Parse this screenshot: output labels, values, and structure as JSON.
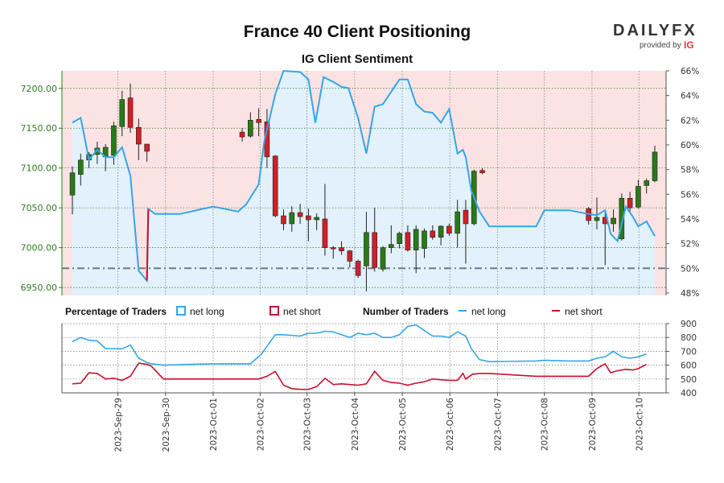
{
  "chart_data": {
    "type": "candlestick",
    "title": "France 40 Client Positioning",
    "subtitle": "IG Client Sentiment",
    "price_axis": {
      "ticks": [
        "7200.00",
        "7150.00",
        "7100.00",
        "7050.00",
        "7000.00",
        "6950.00"
      ],
      "range": [
        6940,
        7222
      ]
    },
    "sentiment_axis": {
      "ticks": [
        "66%",
        "64%",
        "62%",
        "60%",
        "58%",
        "56%",
        "54%",
        "52%",
        "50%",
        "48%"
      ],
      "range": [
        47.8,
        66
      ]
    },
    "traders_axis": {
      "ticks": [
        "900",
        "800",
        "700",
        "600",
        "500",
        "400"
      ],
      "range": [
        400,
        900
      ]
    },
    "x_labels": [
      "2023-Sep-29",
      "2023-Sep-30",
      "2023-Oct-01",
      "2023-Oct-02",
      "2023-Oct-03",
      "2023-Oct-04",
      "2023-Oct-05",
      "2023-Oct-06",
      "2023-Oct-07",
      "2023-Oct-08",
      "2023-Oct-09",
      "2023-Oct-10"
    ],
    "x_label_index": [
      3.3,
      6.75,
      10.2,
      13.6,
      17.0,
      20.45,
      23.9,
      27.35,
      30.8,
      34.2,
      37.65,
      41.05
    ],
    "baseline_pct": 50,
    "candles": [
      {
        "i": 0.0,
        "o": 7066,
        "h": 7102,
        "l": 7042,
        "c": 7094
      },
      {
        "i": 0.6,
        "o": 7092,
        "h": 7118,
        "l": 7078,
        "c": 7110
      },
      {
        "i": 1.2,
        "o": 7110,
        "h": 7120,
        "l": 7100,
        "c": 7117
      },
      {
        "i": 1.8,
        "o": 7117,
        "h": 7133,
        "l": 7105,
        "c": 7125
      },
      {
        "i": 2.4,
        "o": 7114,
        "h": 7130,
        "l": 7096,
        "c": 7126
      },
      {
        "i": 3.0,
        "o": 7116,
        "h": 7158,
        "l": 7104,
        "c": 7153
      },
      {
        "i": 3.6,
        "o": 7152,
        "h": 7197,
        "l": 7140,
        "c": 7186
      },
      {
        "i": 4.2,
        "o": 7188,
        "h": 7206,
        "l": 7144,
        "c": 7151
      },
      {
        "i": 4.8,
        "o": 7151,
        "h": 7162,
        "l": 7110,
        "c": 7130
      },
      {
        "i": 5.4,
        "o": 7130,
        "h": 7130,
        "l": 7108,
        "c": 7121
      },
      {
        "i": 12.3,
        "o": 7145,
        "h": 7150,
        "l": 7133,
        "c": 7139
      },
      {
        "i": 12.9,
        "o": 7140,
        "h": 7170,
        "l": 7138,
        "c": 7160
      },
      {
        "i": 13.5,
        "o": 7161,
        "h": 7175,
        "l": 7140,
        "c": 7157
      },
      {
        "i": 14.1,
        "o": 7158,
        "h": 7174,
        "l": 7100,
        "c": 7114
      },
      {
        "i": 14.7,
        "o": 7115,
        "h": 7116,
        "l": 7038,
        "c": 7040
      },
      {
        "i": 15.3,
        "o": 7040,
        "h": 7048,
        "l": 7022,
        "c": 7030
      },
      {
        "i": 15.9,
        "o": 7030,
        "h": 7052,
        "l": 7020,
        "c": 7044
      },
      {
        "i": 16.5,
        "o": 7044,
        "h": 7055,
        "l": 7030,
        "c": 7039
      },
      {
        "i": 17.1,
        "o": 7040,
        "h": 7049,
        "l": 7008,
        "c": 7035
      },
      {
        "i": 17.7,
        "o": 7035,
        "h": 7043,
        "l": 7022,
        "c": 7038
      },
      {
        "i": 18.3,
        "o": 7036,
        "h": 7080,
        "l": 6990,
        "c": 7000
      },
      {
        "i": 18.9,
        "o": 7000,
        "h": 7002,
        "l": 6986,
        "c": 6999
      },
      {
        "i": 19.5,
        "o": 7000,
        "h": 7008,
        "l": 6991,
        "c": 6996
      },
      {
        "i": 20.1,
        "o": 6996,
        "h": 6997,
        "l": 6975,
        "c": 6983
      },
      {
        "i": 20.7,
        "o": 6983,
        "h": 6985,
        "l": 6962,
        "c": 6965
      },
      {
        "i": 21.3,
        "o": 6977,
        "h": 7045,
        "l": 6945,
        "c": 7019
      },
      {
        "i": 21.9,
        "o": 7019,
        "h": 7050,
        "l": 6970,
        "c": 6975
      },
      {
        "i": 22.5,
        "o": 6973,
        "h": 7002,
        "l": 6970,
        "c": 7000
      },
      {
        "i": 23.1,
        "o": 7000,
        "h": 7028,
        "l": 6993,
        "c": 7004
      },
      {
        "i": 23.7,
        "o": 7005,
        "h": 7020,
        "l": 6999,
        "c": 7018
      },
      {
        "i": 24.3,
        "o": 7019,
        "h": 7028,
        "l": 6995,
        "c": 6997
      },
      {
        "i": 24.9,
        "o": 6997,
        "h": 7028,
        "l": 6968,
        "c": 7023
      },
      {
        "i": 25.5,
        "o": 6999,
        "h": 7024,
        "l": 6987,
        "c": 7021
      },
      {
        "i": 26.1,
        "o": 7021,
        "h": 7028,
        "l": 7010,
        "c": 7013
      },
      {
        "i": 26.7,
        "o": 7013,
        "h": 7028,
        "l": 7003,
        "c": 7027
      },
      {
        "i": 27.3,
        "o": 7027,
        "h": 7030,
        "l": 7015,
        "c": 7018
      },
      {
        "i": 27.9,
        "o": 7018,
        "h": 7060,
        "l": 7000,
        "c": 7045
      },
      {
        "i": 28.5,
        "o": 7047,
        "h": 7060,
        "l": 6980,
        "c": 7030
      },
      {
        "i": 29.1,
        "o": 7030,
        "h": 7098,
        "l": 7028,
        "c": 7096
      },
      {
        "i": 29.7,
        "o": 7097,
        "h": 7100,
        "l": 7092,
        "c": 7094
      },
      {
        "i": 37.4,
        "o": 7049,
        "h": 7051,
        "l": 7029,
        "c": 7034
      },
      {
        "i": 38.0,
        "o": 7034,
        "h": 7063,
        "l": 7023,
        "c": 7038
      },
      {
        "i": 38.6,
        "o": 7038,
        "h": 7048,
        "l": 6978,
        "c": 7030
      },
      {
        "i": 39.2,
        "o": 7030,
        "h": 7048,
        "l": 7020,
        "c": 7037
      },
      {
        "i": 39.8,
        "o": 7011,
        "h": 7068,
        "l": 7009,
        "c": 7062
      },
      {
        "i": 40.4,
        "o": 7062,
        "h": 7070,
        "l": 7045,
        "c": 7050
      },
      {
        "i": 41.0,
        "o": 7051,
        "h": 7085,
        "l": 7049,
        "c": 7077
      },
      {
        "i": 41.6,
        "o": 7078,
        "h": 7087,
        "l": 7068,
        "c": 7084
      },
      {
        "i": 42.2,
        "o": 7084,
        "h": 7128,
        "l": 7082,
        "c": 7120
      }
    ],
    "sentiment": [
      [
        0,
        61.8
      ],
      [
        0.6,
        62.2
      ],
      [
        1.2,
        58.8
      ],
      [
        1.8,
        59.6
      ],
      [
        2.4,
        59.0
      ],
      [
        3.0,
        59.0
      ],
      [
        3.6,
        59.8
      ],
      [
        4.2,
        57.5
      ],
      [
        4.8,
        49.8
      ],
      [
        5.4,
        49.0
      ],
      [
        5.5,
        54.8
      ],
      [
        6.0,
        54.4
      ],
      [
        7.8,
        54.4
      ],
      [
        10.2,
        55.0
      ],
      [
        12.0,
        54.6
      ],
      [
        12.6,
        55.2
      ],
      [
        13.5,
        56.8
      ],
      [
        13.9,
        60.3
      ],
      [
        14.7,
        64.1
      ],
      [
        15.3,
        66.0
      ],
      [
        16.5,
        65.9
      ],
      [
        17.1,
        65.3
      ],
      [
        17.6,
        61.8
      ],
      [
        18.2,
        65.5
      ],
      [
        18.9,
        65.1
      ],
      [
        19.5,
        64.7
      ],
      [
        20.0,
        64.6
      ],
      [
        20.7,
        62.2
      ],
      [
        21.3,
        59.3
      ],
      [
        21.9,
        63.1
      ],
      [
        22.5,
        63.3
      ],
      [
        23.1,
        64.3
      ],
      [
        23.7,
        65.3
      ],
      [
        24.3,
        65.3
      ],
      [
        24.9,
        63.3
      ],
      [
        25.5,
        62.7
      ],
      [
        26.1,
        62.6
      ],
      [
        26.7,
        61.8
      ],
      [
        27.3,
        62.9
      ],
      [
        27.9,
        59.3
      ],
      [
        28.3,
        59.6
      ],
      [
        28.5,
        59.0
      ],
      [
        28.9,
        56.3
      ],
      [
        29.5,
        54.6
      ],
      [
        30.2,
        53.4
      ],
      [
        33.6,
        53.4
      ],
      [
        34.2,
        54.7
      ],
      [
        36.0,
        54.7
      ],
      [
        37.4,
        54.4
      ],
      [
        38.0,
        54.3
      ],
      [
        38.6,
        54.7
      ],
      [
        39.0,
        52.8
      ],
      [
        39.5,
        52.2
      ],
      [
        40.1,
        55.0
      ],
      [
        40.6,
        54.2
      ],
      [
        41.0,
        53.4
      ],
      [
        41.6,
        53.8
      ],
      [
        42.2,
        52.6
      ]
    ],
    "net_long_count": [
      [
        0,
        770
      ],
      [
        0.6,
        800
      ],
      [
        1.2,
        780
      ],
      [
        1.8,
        775
      ],
      [
        2.4,
        720
      ],
      [
        3.0,
        720
      ],
      [
        3.6,
        718
      ],
      [
        4.2,
        745
      ],
      [
        4.8,
        650
      ],
      [
        5.4,
        620
      ],
      [
        5.7,
        610
      ],
      [
        6.6,
        600
      ],
      [
        10.2,
        610
      ],
      [
        12.0,
        610
      ],
      [
        12.9,
        610
      ],
      [
        13.7,
        680
      ],
      [
        14.7,
        820
      ],
      [
        15.3,
        820
      ],
      [
        16.5,
        810
      ],
      [
        17.1,
        830
      ],
      [
        17.7,
        830
      ],
      [
        18.3,
        845
      ],
      [
        18.9,
        840
      ],
      [
        19.5,
        820
      ],
      [
        20.1,
        800
      ],
      [
        20.7,
        830
      ],
      [
        21.3,
        820
      ],
      [
        21.9,
        830
      ],
      [
        22.5,
        800
      ],
      [
        23.1,
        800
      ],
      [
        23.7,
        820
      ],
      [
        24.3,
        880
      ],
      [
        24.9,
        890
      ],
      [
        25.5,
        850
      ],
      [
        26.1,
        810
      ],
      [
        26.7,
        810
      ],
      [
        27.3,
        800
      ],
      [
        27.9,
        840
      ],
      [
        28.5,
        810
      ],
      [
        28.9,
        720
      ],
      [
        29.5,
        640
      ],
      [
        30.2,
        625
      ],
      [
        33.6,
        630
      ],
      [
        34.2,
        635
      ],
      [
        36.0,
        630
      ],
      [
        37.4,
        630
      ],
      [
        38.0,
        650
      ],
      [
        38.6,
        660
      ],
      [
        39.2,
        700
      ],
      [
        39.8,
        660
      ],
      [
        40.4,
        650
      ],
      [
        41.0,
        660
      ],
      [
        41.6,
        680
      ]
    ],
    "net_short_count": [
      [
        0,
        465
      ],
      [
        0.6,
        470
      ],
      [
        1.2,
        545
      ],
      [
        1.8,
        540
      ],
      [
        2.4,
        500
      ],
      [
        3.0,
        505
      ],
      [
        3.6,
        490
      ],
      [
        4.2,
        520
      ],
      [
        4.8,
        615
      ],
      [
        5.4,
        605
      ],
      [
        5.7,
        595
      ],
      [
        6.6,
        500
      ],
      [
        10.2,
        500
      ],
      [
        12.9,
        500
      ],
      [
        13.5,
        500
      ],
      [
        14.1,
        520
      ],
      [
        14.7,
        555
      ],
      [
        15.3,
        455
      ],
      [
        15.9,
        430
      ],
      [
        16.5,
        425
      ],
      [
        17.1,
        425
      ],
      [
        17.7,
        445
      ],
      [
        18.3,
        505
      ],
      [
        18.9,
        460
      ],
      [
        19.5,
        465
      ],
      [
        20.1,
        460
      ],
      [
        20.7,
        455
      ],
      [
        21.3,
        465
      ],
      [
        21.9,
        555
      ],
      [
        22.5,
        490
      ],
      [
        23.1,
        475
      ],
      [
        23.7,
        470
      ],
      [
        24.3,
        455
      ],
      [
        24.9,
        470
      ],
      [
        25.5,
        480
      ],
      [
        26.1,
        500
      ],
      [
        26.7,
        495
      ],
      [
        27.3,
        490
      ],
      [
        27.9,
        490
      ],
      [
        28.3,
        540
      ],
      [
        28.5,
        500
      ],
      [
        29.0,
        535
      ],
      [
        29.5,
        540
      ],
      [
        30.2,
        540
      ],
      [
        33.6,
        520
      ],
      [
        36.0,
        520
      ],
      [
        37.4,
        520
      ],
      [
        38.0,
        575
      ],
      [
        38.6,
        610
      ],
      [
        39.0,
        545
      ],
      [
        39.5,
        560
      ],
      [
        40.1,
        570
      ],
      [
        40.6,
        565
      ],
      [
        41.0,
        575
      ],
      [
        41.6,
        605
      ]
    ]
  },
  "legend": {
    "percentage_title": "Percentage of Traders",
    "number_title": "Number of Traders",
    "net_long": "net long",
    "net_short": "net short"
  },
  "colors": {
    "bull": "#2a7a17",
    "bear": "#d11f26",
    "long_line": "#35a6e8",
    "short_line": "#c8102e",
    "long_fill": "#e2f1fb",
    "short_fill": "#fbe3e3"
  },
  "logo": {
    "brand": "DAILYFX",
    "provided_by": "provided by",
    "ig": "IG"
  }
}
